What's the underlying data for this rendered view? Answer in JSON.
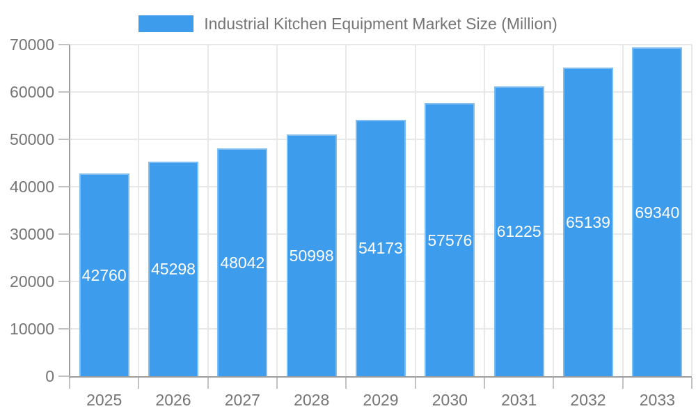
{
  "chart_data": {
    "type": "bar",
    "title": "Industrial Kitchen Equipment Market Size (Million)",
    "categories": [
      "2025",
      "2026",
      "2027",
      "2028",
      "2029",
      "2030",
      "2031",
      "2032",
      "2033"
    ],
    "values": [
      42760,
      45298,
      48042,
      50998,
      54173,
      57576,
      61225,
      65139,
      69340
    ],
    "xlabel": "",
    "ylabel": "",
    "ylim": [
      0,
      70000
    ],
    "y_ticks": [
      0,
      10000,
      20000,
      30000,
      40000,
      50000,
      60000,
      70000
    ],
    "grid": true,
    "legend_position": "top-center",
    "value_labels": "inside-center",
    "colors": {
      "bar": "#3D9CEC",
      "value_label": "#FFFFFF",
      "axis_label": "#757575",
      "legend_text": "#757575",
      "axis_line": "#9E9E9E",
      "tick": "#C2C2C2",
      "gridline": "#E8E8E8",
      "background": "#FFFFFF"
    }
  }
}
